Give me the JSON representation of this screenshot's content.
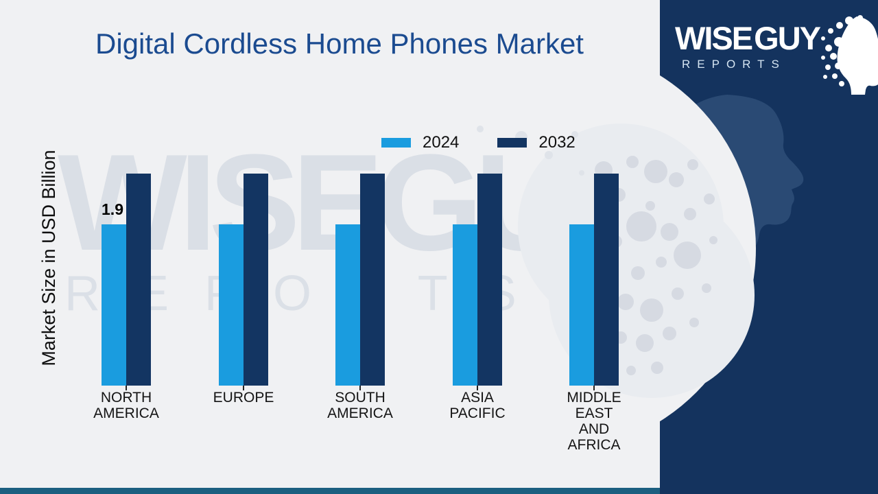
{
  "title": "Digital Cordless Home Phones Market",
  "y_axis_label": "Market Size in USD Billion",
  "legend": [
    {
      "label": "2024",
      "color": "#1a9cdf"
    },
    {
      "label": "2032",
      "color": "#133562"
    }
  ],
  "chart_data": {
    "type": "bar",
    "categories": [
      "NORTH AMERICA",
      "EUROPE",
      "SOUTH AMERICA",
      "ASIA PACIFIC",
      "MIDDLE EAST AND AFRICA"
    ],
    "category_lines": [
      [
        "NORTH",
        "AMERICA"
      ],
      [
        "EUROPE"
      ],
      [
        "SOUTH",
        "AMERICA"
      ],
      [
        "ASIA",
        "PACIFIC"
      ],
      [
        "MIDDLE",
        "EAST",
        "AND",
        "AFRICA"
      ]
    ],
    "series": [
      {
        "name": "2024",
        "color": "#1a9cdf",
        "values": [
          1.9,
          1.9,
          1.9,
          1.9,
          1.9
        ]
      },
      {
        "name": "2032",
        "color": "#133562",
        "values": [
          2.5,
          2.5,
          2.5,
          2.5,
          2.5
        ]
      }
    ],
    "data_labels": [
      {
        "series_index": 0,
        "category_index": 0,
        "text": "1.9"
      }
    ],
    "title": "Digital Cordless Home Phones Market",
    "xlabel": "",
    "ylabel": "Market Size in USD Billion",
    "ylim": [
      0,
      2.7
    ],
    "grid": false,
    "legend_position": "top-center",
    "axis_tick_labels_visible": false
  },
  "brand": {
    "wordmark": "WISE GUY",
    "wordmark_sub": "REPORTS",
    "icon": "dotted-head-profile-icon",
    "band_color": "#14335e",
    "strip_color": "#1c5f80"
  },
  "watermark": {
    "wordmark": "WISE GUY",
    "wordmark_sub": "REPORTS"
  },
  "colors": {
    "background": "#f0f1f3",
    "title": "#1b4b90",
    "series_2024": "#1a9cdf",
    "series_2032": "#133562"
  }
}
